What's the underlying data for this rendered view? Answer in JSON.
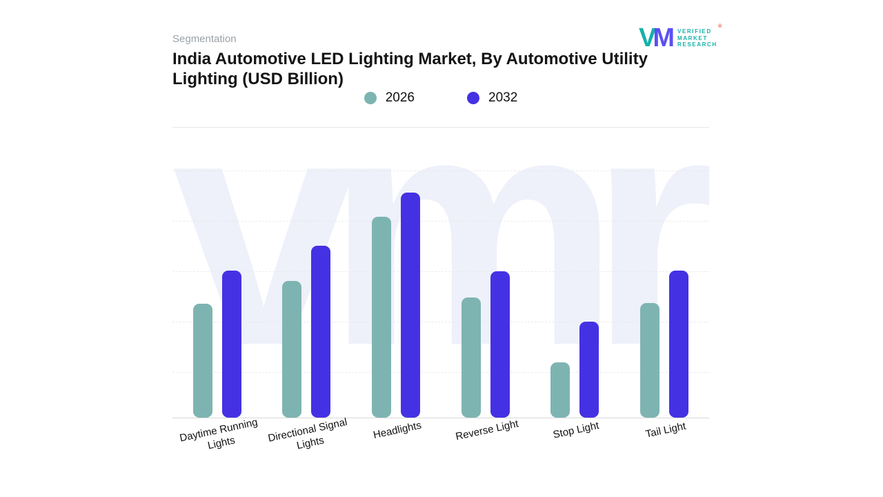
{
  "header": {
    "eyebrow": "Segmentation",
    "title_line1": "India Automotive LED Lighting Market, By Automotive Utility",
    "title_line2": "Lighting (USD Billion)"
  },
  "logo": {
    "mark_v": "V",
    "mark_m": "M",
    "line1": "VERIFIED",
    "line2": "MARKET",
    "line3": "RESEARCH",
    "registered": "®",
    "teal": "#12b2a8",
    "purple": "#5b4ff5",
    "registered_color": "#e2552e"
  },
  "chart_data": {
    "type": "bar",
    "title": "India Automotive LED Lighting Market, By Automotive Utility Lighting (USD Billion)",
    "categories": [
      "Daytime Running Lights",
      "Directional Signal Lights",
      "Headlights",
      "Reverse Light",
      "Stop Light",
      "Tail Light"
    ],
    "series": [
      {
        "name": "2026",
        "color": "#7db4b1",
        "values": [
          1.52,
          1.82,
          2.68,
          1.6,
          0.74,
          1.53
        ]
      },
      {
        "name": "2032",
        "color": "#4531e4",
        "values": [
          1.96,
          2.29,
          3.0,
          1.95,
          1.28,
          1.96
        ]
      }
    ],
    "xlabel": "",
    "ylabel": "USD Billion",
    "ylim": [
      0,
      3.5
    ],
    "grid": "dashed-horizontal",
    "legend_position": "top",
    "watermark": "vmr"
  }
}
